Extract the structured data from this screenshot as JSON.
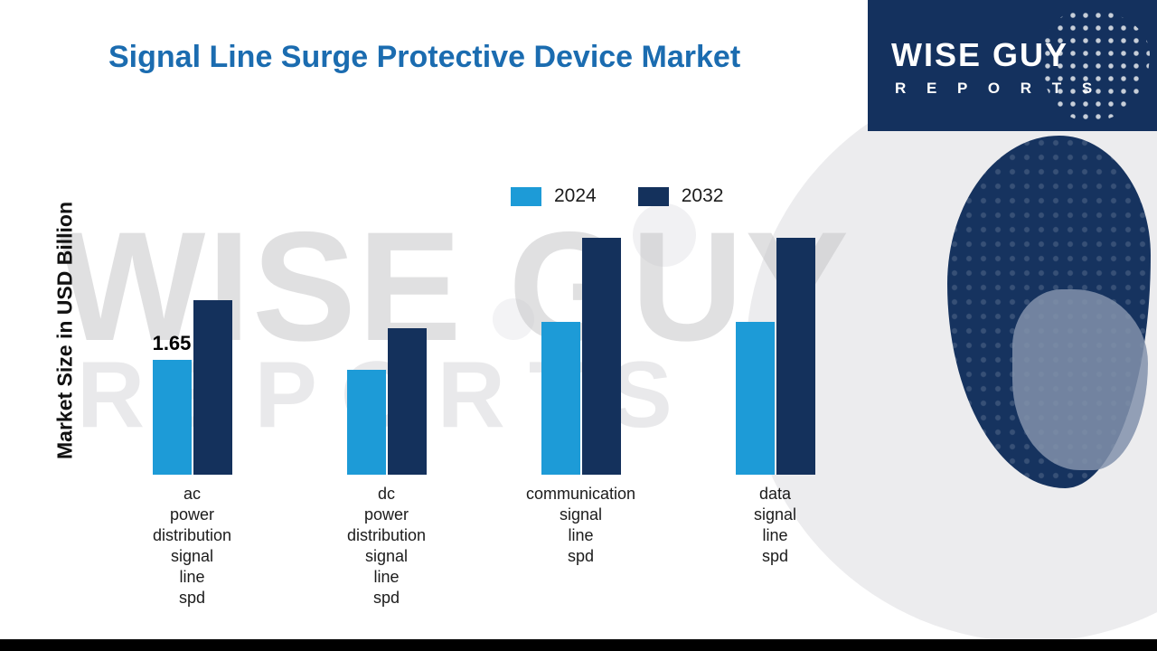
{
  "header": {
    "title": "Signal Line Surge Protective Device Market"
  },
  "axis": {
    "ylabel": "Market Size in USD Billion"
  },
  "logo": {
    "name": "WISE GUY",
    "sub": "R E P O R T S"
  },
  "watermark": {
    "line1": "WISE GUY",
    "line2": "REPORTS"
  },
  "legend": {
    "items": [
      {
        "label": "2024",
        "color": "#1d9bd7"
      },
      {
        "label": "2032",
        "color": "#14315c"
      }
    ]
  },
  "colors": {
    "title_blue": "#1b6cb0",
    "series_2024": "#1d9bd7",
    "series_2032": "#14315c",
    "logo_navy": "#14315e"
  },
  "chart_data": {
    "type": "bar",
    "title": "Signal Line Surge Protective Device Market",
    "ylabel": "Market Size in USD Billion",
    "unit": "USD Billion",
    "categories": [
      "ac power distribution signal line spd",
      "dc power distribution signal line spd",
      "communication signal line spd",
      "data signal line spd"
    ],
    "series": [
      {
        "name": "2024",
        "color": "#1d9bd7",
        "values": [
          1.65,
          1.5,
          2.2,
          2.2
        ]
      },
      {
        "name": "2032",
        "color": "#14315c",
        "values": [
          2.5,
          2.1,
          3.4,
          3.4
        ]
      }
    ],
    "data_labels": [
      {
        "category_index": 0,
        "series_index": 0,
        "text": "1.65"
      }
    ],
    "ylim": [
      0,
      3.6
    ],
    "grid": false,
    "legend_position": "top"
  }
}
